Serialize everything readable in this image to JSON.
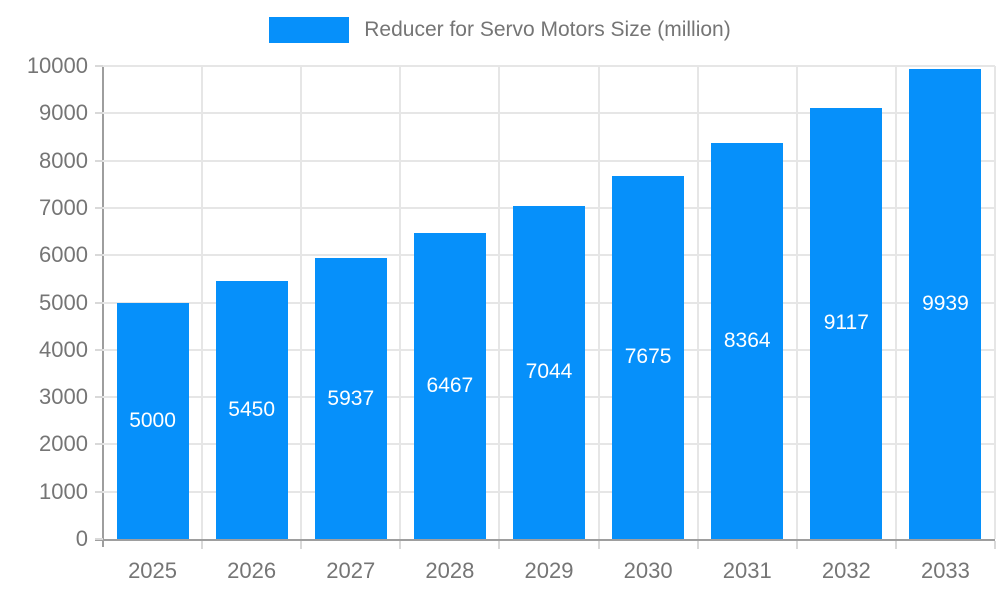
{
  "chart_data": {
    "type": "bar",
    "title": "Reducer for Servo Motors Size (million)",
    "categories": [
      "2025",
      "2026",
      "2027",
      "2028",
      "2029",
      "2030",
      "2031",
      "2032",
      "2033"
    ],
    "values": [
      5000,
      5450,
      5937,
      6467,
      7044,
      7675,
      8364,
      9117,
      9939
    ],
    "xlabel": "",
    "ylabel": "",
    "ylim": [
      0,
      10000
    ],
    "ytick_step": 1000,
    "yticks": [
      "0",
      "1000",
      "2000",
      "3000",
      "4000",
      "5000",
      "6000",
      "7000",
      "8000",
      "9000",
      "10000"
    ],
    "grid": true,
    "legend_position": "top",
    "colors": {
      "bar": "#0690fa",
      "value_label": "#ffffff",
      "axis_text": "#757575",
      "axis_line": "#9e9e9e",
      "gridline": "#e6e6e6",
      "tick": "#d9d9d9",
      "background": "#ffffff"
    }
  }
}
